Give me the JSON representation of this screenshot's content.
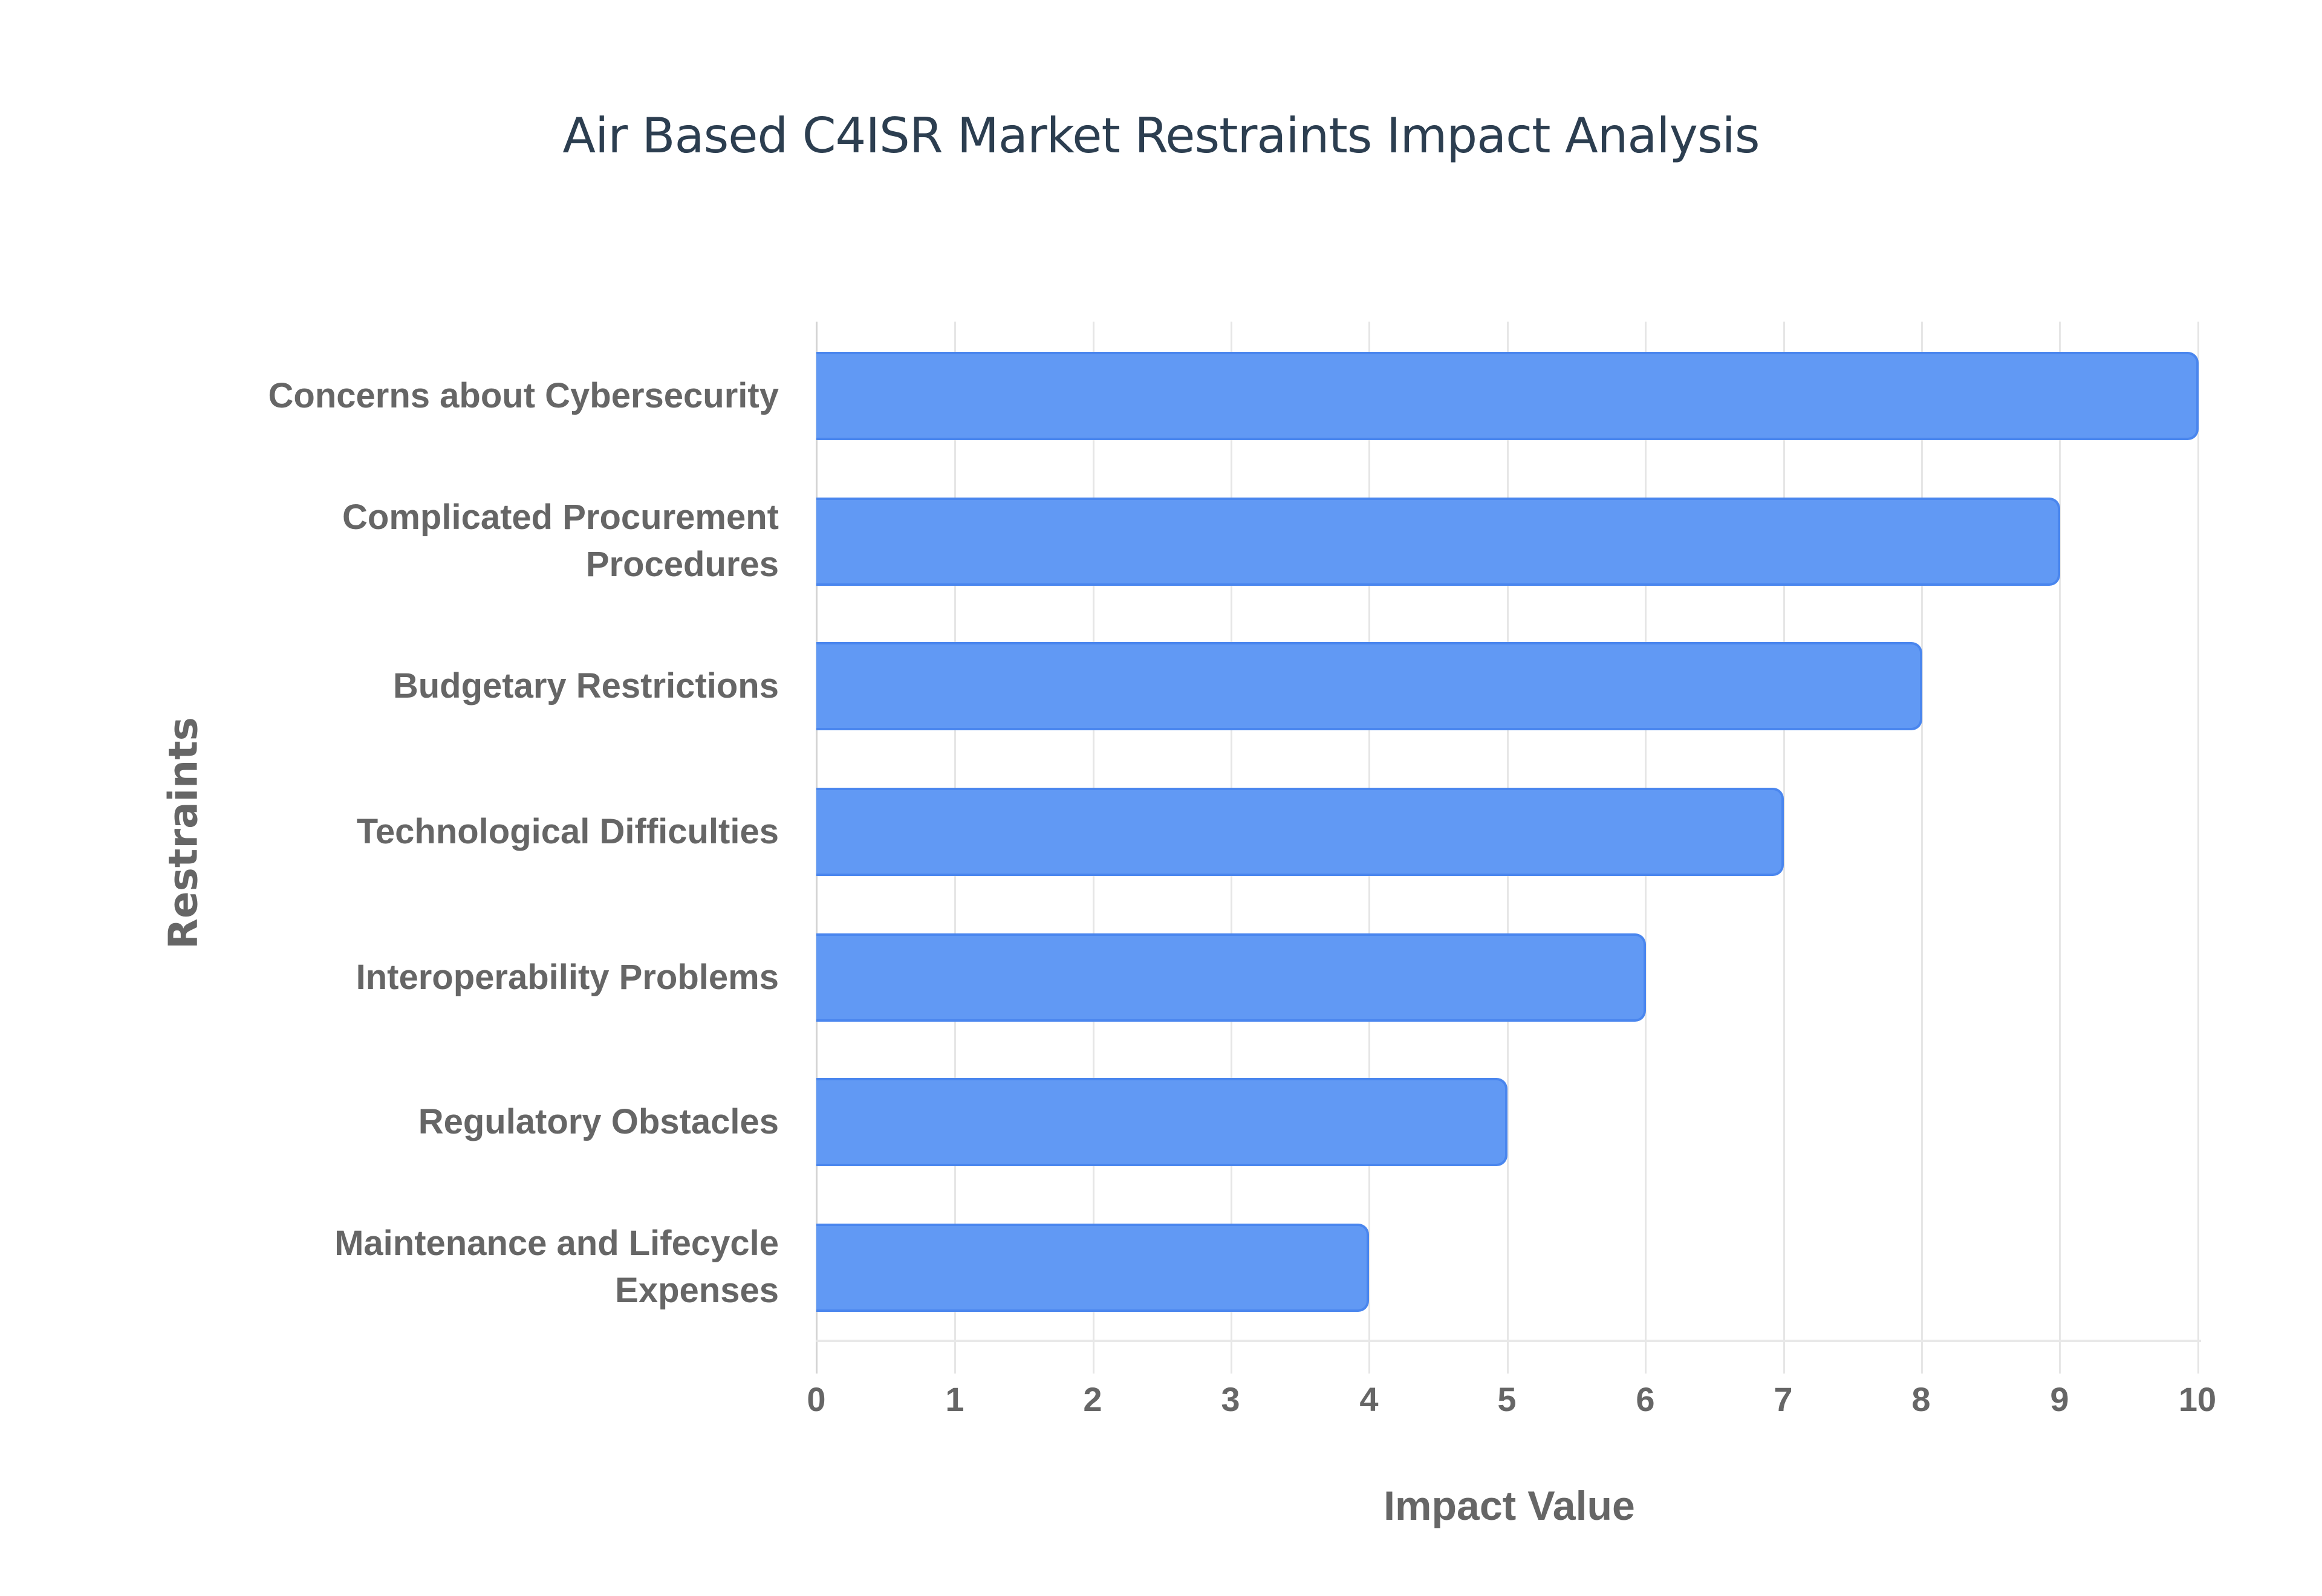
{
  "chart_data": {
    "type": "bar",
    "orientation": "horizontal",
    "title": "Air Based C4ISR Market Restraints Impact Analysis",
    "xlabel": "Impact Value",
    "ylabel": "Restraints",
    "categories": [
      "Concerns about Cybersecurity",
      "Complicated Procurement Procedures",
      "Budgetary Restrictions",
      "Technological Difficulties",
      "Interoperability Problems",
      "Regulatory Obstacles",
      "Maintenance and Lifecycle Expenses"
    ],
    "values": [
      10,
      9,
      8,
      7,
      6,
      5,
      4
    ],
    "xlim": [
      0,
      10
    ],
    "x_ticks": [
      "0",
      "1",
      "2",
      "3",
      "4",
      "5",
      "6",
      "7",
      "8",
      "9",
      "10"
    ],
    "grid": true,
    "legend": null,
    "bar_color": "#6199f4",
    "bar_border_color": "#4a86ee"
  },
  "labels": {
    "cat0_line1": "Concerns about Cybersecurity",
    "cat1_line1": "Complicated Procurement",
    "cat1_line2": "Procedures",
    "cat2_line1": "Budgetary Restrictions",
    "cat3_line1": "Technological Difficulties",
    "cat4_line1": "Interoperability Problems",
    "cat5_line1": "Regulatory Obstacles",
    "cat6_line1": "Maintenance and Lifecycle",
    "cat6_line2": "Expenses"
  }
}
